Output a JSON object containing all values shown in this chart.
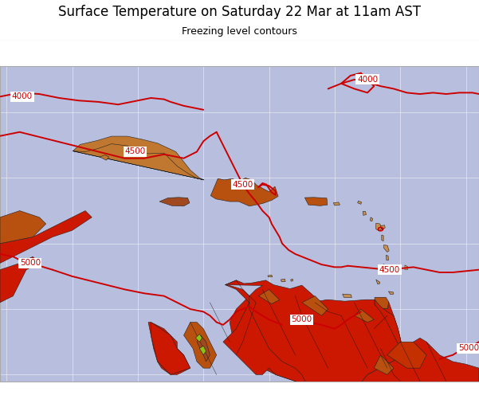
{
  "title": "Surface Temperature on Saturday 22 Mar at 11am AST",
  "subtitle": "Freezing level contours",
  "title_fontsize": 12,
  "subtitle_fontsize": 9,
  "figsize": [
    6.01,
    5.11
  ],
  "dpi": 100,
  "map_bg": "#b8bedd",
  "ocean_color": "#b8bedd",
  "title_bg": "#ffffff",
  "border_color": "#aaaaaa",
  "xlim": [
    -90.5,
    -54.0
  ],
  "ylim": [
    4.5,
    28.5
  ],
  "grid_lons": [
    -90,
    -85,
    -80,
    -75,
    -70,
    -65,
    -60,
    -55
  ],
  "grid_lats": [
    5,
    10,
    15,
    20,
    25
  ],
  "contour_color": "#cc0000",
  "contour_lw": 1.4,
  "label_fontsize": 7.5
}
